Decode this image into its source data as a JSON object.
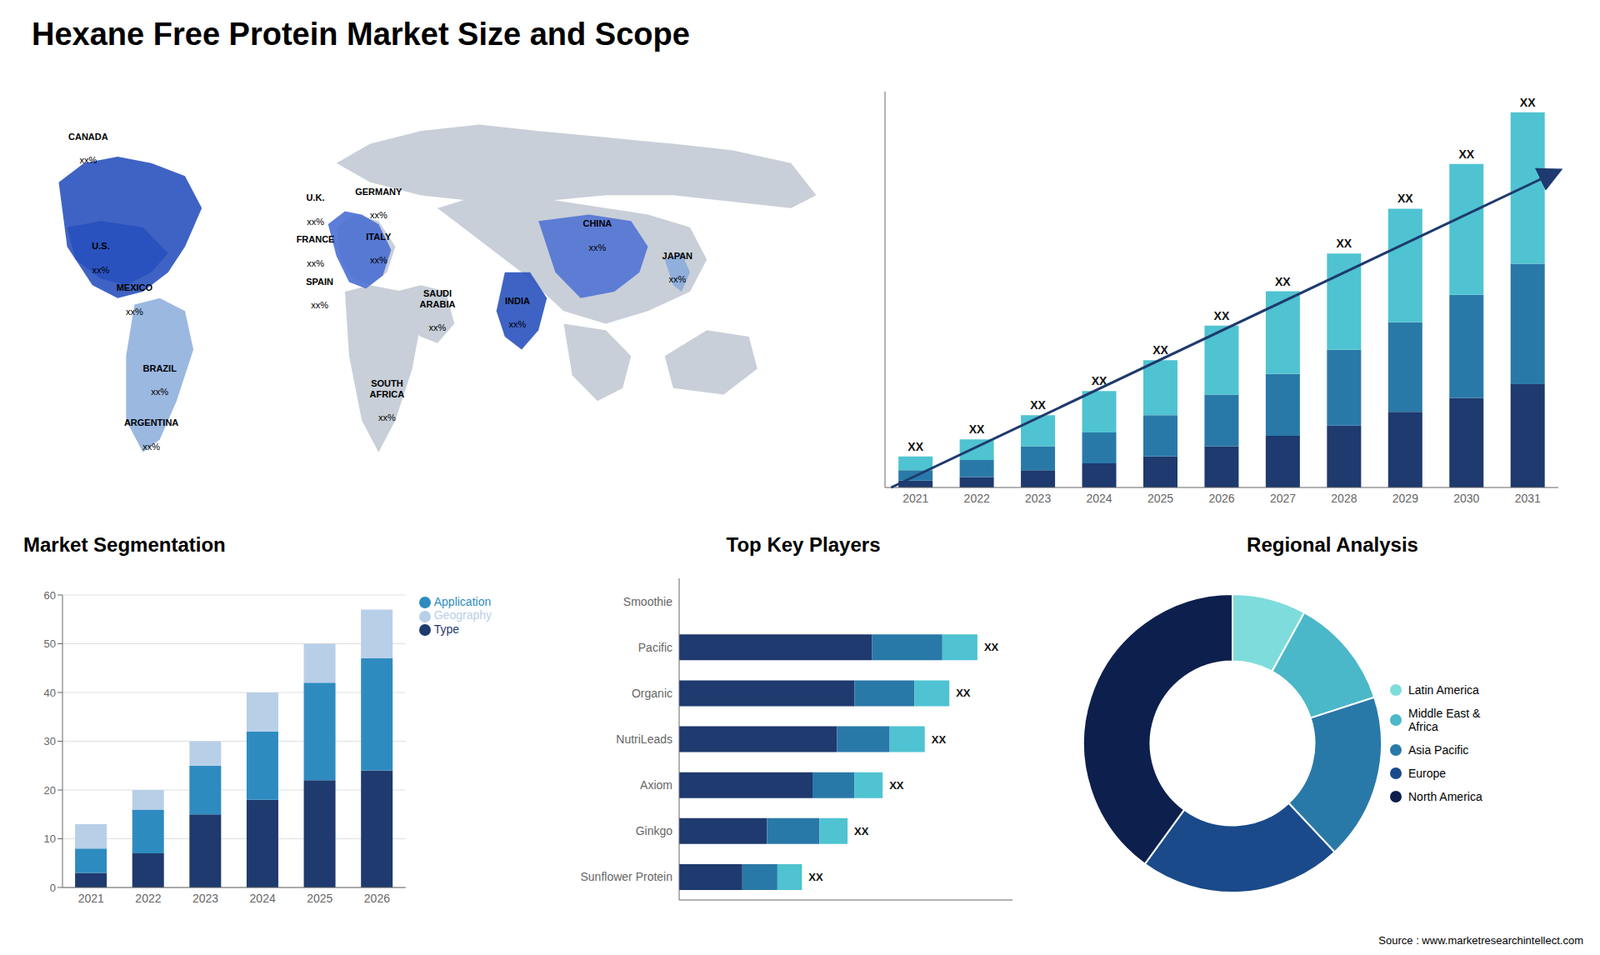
{
  "title": "Hexane Free Protein Market Size and Scope",
  "annotations": [
    "Source : www.marketresearchintellect.com"
  ],
  "chart_data": [
    {
      "type": "map",
      "annotations": [
        {
          "text": "CANADA",
          "subtext": "xx%"
        },
        {
          "text": "U.S.",
          "subtext": "xx%"
        },
        {
          "text": "MEXICO",
          "subtext": "xx%"
        },
        {
          "text": "BRAZIL",
          "subtext": "xx%"
        },
        {
          "text": "ARGENTINA",
          "subtext": "xx%"
        },
        {
          "text": "U.K.",
          "subtext": "xx%"
        },
        {
          "text": "FRANCE",
          "subtext": "xx%"
        },
        {
          "text": "SPAIN",
          "subtext": "xx%"
        },
        {
          "text": "GERMANY",
          "subtext": "xx%"
        },
        {
          "text": "ITALY",
          "subtext": "xx%"
        },
        {
          "text": "SAUDI\nARABIA",
          "subtext": "xx%"
        },
        {
          "text": "SOUTH\nAFRICA",
          "subtext": "xx%"
        },
        {
          "text": "CHINA",
          "subtext": "xx%"
        },
        {
          "text": "INDIA",
          "subtext": "xx%"
        },
        {
          "text": "JAPAN",
          "subtext": "xx%"
        }
      ],
      "colors": [
        "#c8cfd8",
        "#2a52be",
        "#4a6fd4",
        "#8aabdc"
      ]
    },
    {
      "type": "bar",
      "stacked": true,
      "categories": [
        "2021",
        "2022",
        "2023",
        "2024",
        "2025",
        "2026",
        "2027",
        "2028",
        "2029",
        "2030",
        "2031"
      ],
      "series": [
        {
          "color": "#1e3a6e",
          "values": [
            2,
            3,
            5,
            7,
            9,
            12,
            15,
            18,
            22,
            26,
            30
          ]
        },
        {
          "color": "#2979a8",
          "values": [
            3,
            5,
            7,
            9,
            12,
            15,
            18,
            22,
            26,
            30,
            35
          ]
        },
        {
          "color": "#4fc3d1",
          "values": [
            4,
            6,
            9,
            12,
            16,
            20,
            24,
            28,
            33,
            38,
            44
          ]
        }
      ],
      "annotations": [
        "XX",
        "XX",
        "XX",
        "XX",
        "XX",
        "XX",
        "XX",
        "XX",
        "XX",
        "XX",
        "XX"
      ],
      "ylim": [
        0,
        115
      ],
      "tick_labels": "x"
    },
    {
      "type": "bar",
      "title": "Market Segmentation",
      "stacked": true,
      "categories": [
        "2021",
        "2022",
        "2023",
        "2024",
        "2025",
        "2026"
      ],
      "series": [
        {
          "name": "Type",
          "color": "#1e3a6e",
          "values": [
            3,
            7,
            15,
            18,
            22,
            24
          ]
        },
        {
          "name": "Application",
          "color": "#2e8bc0",
          "values": [
            5,
            9,
            10,
            14,
            20,
            23
          ]
        },
        {
          "name": "Geography",
          "color": "#b8cfe8",
          "values": [
            5,
            4,
            5,
            8,
            8,
            10
          ]
        }
      ],
      "ylim": [
        0,
        60
      ],
      "yticks": [
        0,
        10,
        20,
        30,
        40,
        50,
        60
      ],
      "grid": true,
      "legend": "right"
    },
    {
      "type": "bar",
      "title": "Top Key Players",
      "orientation": "horizontal",
      "stacked": true,
      "categories": [
        "Smoothie",
        "Pacific",
        "Organic",
        "NutriLeads",
        "Axiom",
        "Ginkgo",
        "Sunflower Protein"
      ],
      "series": [
        {
          "color": "#1e3a6e",
          "values": [
            0,
            55,
            50,
            45,
            38,
            25,
            18
          ]
        },
        {
          "color": "#2979a8",
          "values": [
            0,
            20,
            17,
            15,
            12,
            15,
            10
          ]
        },
        {
          "color": "#4fc3d1",
          "values": [
            0,
            10,
            10,
            10,
            8,
            8,
            7
          ]
        }
      ],
      "annotations": [
        null,
        "XX",
        "XX",
        "XX",
        "XX",
        "XX",
        "XX"
      ],
      "xlim": [
        0,
        95
      ],
      "tick_labels": "y"
    },
    {
      "type": "pie",
      "title": "Regional Analysis",
      "categories": [
        "Latin America",
        "Middle East &\nAfrica",
        "Asia Pacific",
        "Europe",
        "North America"
      ],
      "values": [
        8,
        12,
        18,
        22,
        40
      ],
      "colors": [
        "#7edcdc",
        "#4ab8c8",
        "#2979a8",
        "#1a4a8a",
        "#0d1f4d"
      ],
      "legend": "right"
    }
  ]
}
